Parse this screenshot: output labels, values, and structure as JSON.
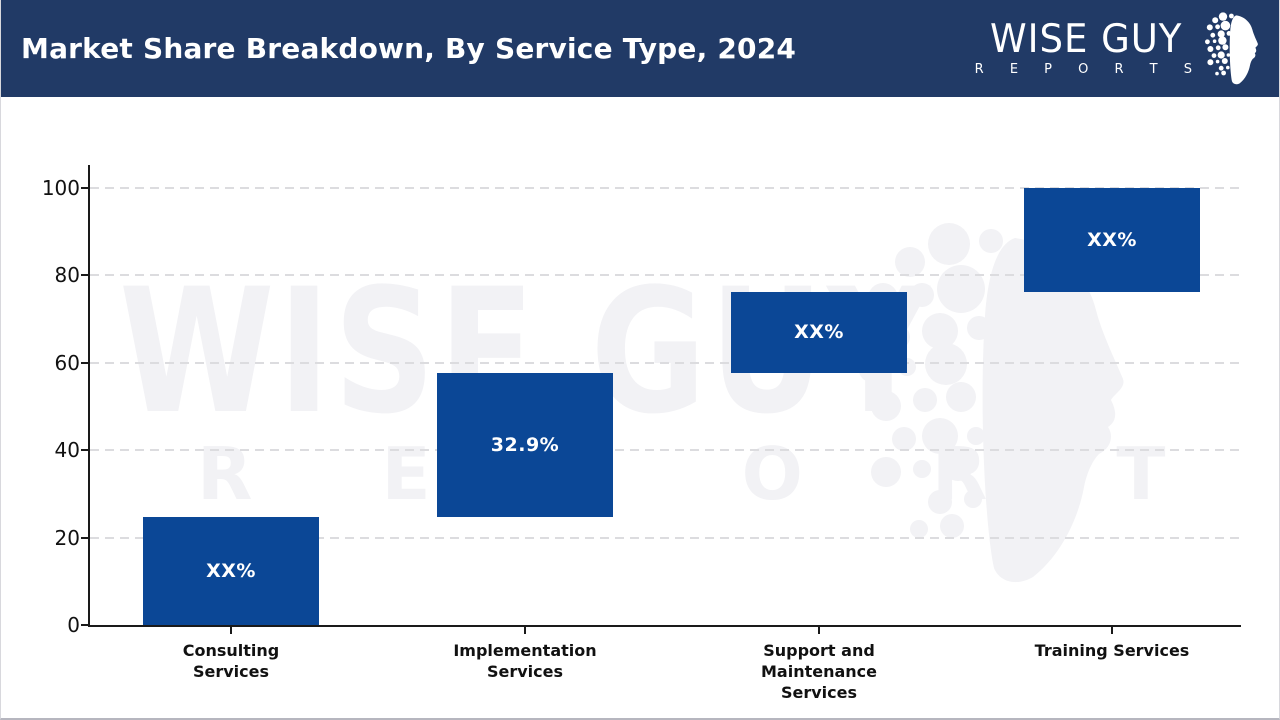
{
  "header": {
    "title": "Market Share Breakdown, By Service Type, 2024",
    "logo": {
      "name": "WISE GUY",
      "subtitle": "REPORTS"
    }
  },
  "watermark": {
    "line1": "WISE GUY",
    "line2": "REPORTS"
  },
  "colors": {
    "header_bg": "#213a66",
    "bar": "#0b4796",
    "grid": "#dcdcdf",
    "axis": "#1a1a1a",
    "watermark": "#f2f2f5",
    "bar_label": "#ffffff"
  },
  "chart_data": {
    "type": "bar",
    "variant": "waterfall-floating-bars",
    "title": "Market Share Breakdown, By Service Type, 2024",
    "categories": [
      "Consulting\nServices",
      "Implementation\nServices",
      "Support and\nMaintenance\nServices",
      "Training Services"
    ],
    "segments": [
      {
        "category": "Consulting Services",
        "start": 0,
        "end": 24.7,
        "delta": 24.7,
        "label": "XX%"
      },
      {
        "category": "Implementation Services",
        "start": 24.7,
        "end": 57.6,
        "delta": 32.9,
        "label": "32.9%"
      },
      {
        "category": "Support and Maintenance Services",
        "start": 57.6,
        "end": 76.2,
        "delta": 18.6,
        "label": "XX%"
      },
      {
        "category": "Training Services",
        "start": 76.2,
        "end": 100,
        "delta": 23.8,
        "label": "XX%"
      }
    ],
    "yticks": [
      0,
      20,
      40,
      60,
      80,
      100
    ],
    "ytick_labels": [
      "0",
      "20",
      "40",
      "60",
      "80",
      "100"
    ],
    "ylim": [
      0,
      105
    ],
    "xlabel": "",
    "ylabel": "",
    "grid": "horizontal-dashed",
    "legend": "none",
    "bar_color": "#0b4796",
    "value_label_color": "#ffffff"
  }
}
